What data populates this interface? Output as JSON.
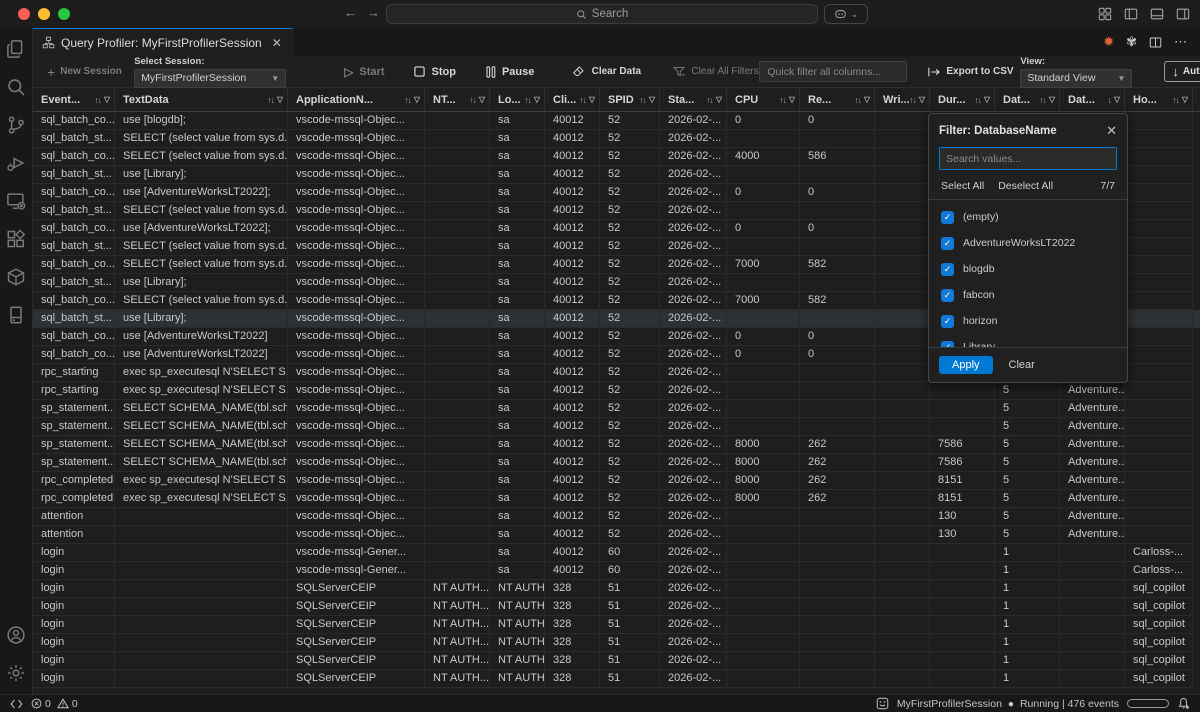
{
  "titlebar": {
    "search_placeholder": "Search"
  },
  "tabbar": {
    "tab_title": "Query Profiler: MyFirstProfilerSession"
  },
  "toolbar": {
    "new_session": "New Session",
    "select_session_label": "Select Session:",
    "session_value": "MyFirstProfilerSession",
    "start": "Start",
    "stop": "Stop",
    "pause": "Pause",
    "clear_data": "Clear Data",
    "clear_all_filters": "Clear All Filters",
    "quick_filter_placeholder": "Quick filter all columns...",
    "export_csv": "Export to CSV",
    "view_label": "View:",
    "view_value": "Standard View",
    "auto_scroll": "Auto-scroll"
  },
  "grid": {
    "columns": [
      {
        "label": "Event...",
        "sort": "both"
      },
      {
        "label": "TextData",
        "sort": "both"
      },
      {
        "label": "ApplicationN...",
        "sort": "both"
      },
      {
        "label": "NT...",
        "sort": "both"
      },
      {
        "label": "Lo...",
        "sort": "both"
      },
      {
        "label": "Cli...",
        "sort": "both"
      },
      {
        "label": "SPID",
        "sort": "both"
      },
      {
        "label": "Sta...",
        "sort": "both"
      },
      {
        "label": "CPU",
        "sort": "both"
      },
      {
        "label": "Re...",
        "sort": "both"
      },
      {
        "label": "Wri...",
        "sort": "both"
      },
      {
        "label": "Dur...",
        "sort": "both"
      },
      {
        "label": "Dat...",
        "sort": "both"
      },
      {
        "label": "Dat...",
        "sort": "desc"
      },
      {
        "label": "Ho...",
        "sort": "both"
      }
    ],
    "highlighted_row_index": 11,
    "rows": [
      [
        "sql_batch_co...",
        "use [blogdb];",
        "vscode-mssql-Objec...",
        "",
        "sa",
        "40012",
        "52",
        "2026-02-...",
        "0",
        "0",
        "",
        "",
        "",
        "",
        ""
      ],
      [
        "sql_batch_st...",
        "SELECT (select value from sys.d...",
        "vscode-mssql-Objec...",
        "",
        "sa",
        "40012",
        "52",
        "2026-02-...",
        "",
        "",
        "",
        "",
        "",
        "",
        ""
      ],
      [
        "sql_batch_co...",
        "SELECT (select value from sys.d...",
        "vscode-mssql-Objec...",
        "",
        "sa",
        "40012",
        "52",
        "2026-02-...",
        "4000",
        "586",
        "",
        "",
        "",
        "",
        ""
      ],
      [
        "sql_batch_st...",
        "use [Library];",
        "vscode-mssql-Objec...",
        "",
        "sa",
        "40012",
        "52",
        "2026-02-...",
        "",
        "",
        "",
        "",
        "",
        "",
        ""
      ],
      [
        "sql_batch_co...",
        "use [AdventureWorksLT2022];",
        "vscode-mssql-Objec...",
        "",
        "sa",
        "40012",
        "52",
        "2026-02-...",
        "0",
        "0",
        "",
        "",
        "",
        "",
        ""
      ],
      [
        "sql_batch_st...",
        "SELECT (select value from sys.d...",
        "vscode-mssql-Objec...",
        "",
        "sa",
        "40012",
        "52",
        "2026-02-...",
        "",
        "",
        "",
        "",
        "",
        "",
        ""
      ],
      [
        "sql_batch_co...",
        "use [AdventureWorksLT2022];",
        "vscode-mssql-Objec...",
        "",
        "sa",
        "40012",
        "52",
        "2026-02-...",
        "0",
        "0",
        "",
        "",
        "",
        "",
        ""
      ],
      [
        "sql_batch_st...",
        "SELECT (select value from sys.d...",
        "vscode-mssql-Objec...",
        "",
        "sa",
        "40012",
        "52",
        "2026-02-...",
        "",
        "",
        "",
        "",
        "",
        "",
        ""
      ],
      [
        "sql_batch_co...",
        "SELECT (select value from sys.d...",
        "vscode-mssql-Objec...",
        "",
        "sa",
        "40012",
        "52",
        "2026-02-...",
        "7000",
        "582",
        "",
        "",
        "",
        "",
        ""
      ],
      [
        "sql_batch_st...",
        "use [Library];",
        "vscode-mssql-Objec...",
        "",
        "sa",
        "40012",
        "52",
        "2026-02-...",
        "",
        "",
        "",
        "",
        "",
        "",
        ""
      ],
      [
        "sql_batch_co...",
        "SELECT (select value from sys.d...",
        "vscode-mssql-Objec...",
        "",
        "sa",
        "40012",
        "52",
        "2026-02-...",
        "7000",
        "582",
        "",
        "",
        "",
        "",
        ""
      ],
      [
        "sql_batch_st...",
        "use [Library];",
        "vscode-mssql-Objec...",
        "",
        "sa",
        "40012",
        "52",
        "2026-02-...",
        "",
        "",
        "",
        "",
        "",
        "",
        ""
      ],
      [
        "sql_batch_co...",
        "use [AdventureWorksLT2022]",
        "vscode-mssql-Objec...",
        "",
        "sa",
        "40012",
        "52",
        "2026-02-...",
        "0",
        "0",
        "",
        "",
        "",
        "",
        ""
      ],
      [
        "sql_batch_co...",
        "use [AdventureWorksLT2022]",
        "vscode-mssql-Objec...",
        "",
        "sa",
        "40012",
        "52",
        "2026-02-...",
        "0",
        "0",
        "",
        "",
        "",
        "",
        ""
      ],
      [
        "rpc_starting",
        "exec sp_executesql N'SELECT S...",
        "vscode-mssql-Objec...",
        "",
        "sa",
        "40012",
        "52",
        "2026-02-...",
        "",
        "",
        "",
        "",
        "",
        "",
        ""
      ],
      [
        "rpc_starting",
        "exec sp_executesql N'SELECT S...",
        "vscode-mssql-Objec...",
        "",
        "sa",
        "40012",
        "52",
        "2026-02-...",
        "",
        "",
        "",
        "",
        "5",
        "Adventure...",
        ""
      ],
      [
        "sp_statement...",
        "SELECT SCHEMA_NAME(tbl.sch...",
        "vscode-mssql-Objec...",
        "",
        "sa",
        "40012",
        "52",
        "2026-02-...",
        "",
        "",
        "",
        "",
        "5",
        "Adventure...",
        ""
      ],
      [
        "sp_statement...",
        "SELECT SCHEMA_NAME(tbl.sch...",
        "vscode-mssql-Objec...",
        "",
        "sa",
        "40012",
        "52",
        "2026-02-...",
        "",
        "",
        "",
        "",
        "5",
        "Adventure...",
        ""
      ],
      [
        "sp_statement...",
        "SELECT SCHEMA_NAME(tbl.sch...",
        "vscode-mssql-Objec...",
        "",
        "sa",
        "40012",
        "52",
        "2026-02-...",
        "8000",
        "262",
        "",
        "7586",
        "5",
        "Adventure...",
        ""
      ],
      [
        "sp_statement...",
        "SELECT SCHEMA_NAME(tbl.sch...",
        "vscode-mssql-Objec...",
        "",
        "sa",
        "40012",
        "52",
        "2026-02-...",
        "8000",
        "262",
        "",
        "7586",
        "5",
        "Adventure...",
        ""
      ],
      [
        "rpc_completed",
        "exec sp_executesql N'SELECT S...",
        "vscode-mssql-Objec...",
        "",
        "sa",
        "40012",
        "52",
        "2026-02-...",
        "8000",
        "262",
        "",
        "8151",
        "5",
        "Adventure...",
        ""
      ],
      [
        "rpc_completed",
        "exec sp_executesql N'SELECT S...",
        "vscode-mssql-Objec...",
        "",
        "sa",
        "40012",
        "52",
        "2026-02-...",
        "8000",
        "262",
        "",
        "8151",
        "5",
        "Adventure...",
        ""
      ],
      [
        "attention",
        "",
        "vscode-mssql-Objec...",
        "",
        "sa",
        "40012",
        "52",
        "2026-02-...",
        "",
        "",
        "",
        "130",
        "5",
        "Adventure...",
        ""
      ],
      [
        "attention",
        "",
        "vscode-mssql-Objec...",
        "",
        "sa",
        "40012",
        "52",
        "2026-02-...",
        "",
        "",
        "",
        "130",
        "5",
        "Adventure...",
        ""
      ],
      [
        "login",
        "",
        "vscode-mssql-Gener...",
        "",
        "sa",
        "40012",
        "60",
        "2026-02-...",
        "",
        "",
        "",
        "",
        "1",
        "",
        "Carloss-..."
      ],
      [
        "login",
        "",
        "vscode-mssql-Gener...",
        "",
        "sa",
        "40012",
        "60",
        "2026-02-...",
        "",
        "",
        "",
        "",
        "1",
        "",
        "Carloss-..."
      ],
      [
        "login",
        "",
        "SQLServerCEIP",
        "NT AUTH...",
        "NT AUTH...",
        "328",
        "51",
        "2026-02-...",
        "",
        "",
        "",
        "",
        "1",
        "",
        "sql_copilot"
      ],
      [
        "login",
        "",
        "SQLServerCEIP",
        "NT AUTH...",
        "NT AUTH...",
        "328",
        "51",
        "2026-02-...",
        "",
        "",
        "",
        "",
        "1",
        "",
        "sql_copilot"
      ],
      [
        "login",
        "",
        "SQLServerCEIP",
        "NT AUTH...",
        "NT AUTH...",
        "328",
        "51",
        "2026-02-...",
        "",
        "",
        "",
        "",
        "1",
        "",
        "sql_copilot"
      ],
      [
        "login",
        "",
        "SQLServerCEIP",
        "NT AUTH...",
        "NT AUTH...",
        "328",
        "51",
        "2026-02-...",
        "",
        "",
        "",
        "",
        "1",
        "",
        "sql_copilot"
      ],
      [
        "login",
        "",
        "SQLServerCEIP",
        "NT AUTH...",
        "NT AUTH...",
        "328",
        "51",
        "2026-02-...",
        "",
        "",
        "",
        "",
        "1",
        "",
        "sql_copilot"
      ],
      [
        "login",
        "",
        "SQLServerCEIP",
        "NT AUTH...",
        "NT AUTH...",
        "328",
        "51",
        "2026-02-...",
        "",
        "",
        "",
        "",
        "1",
        "",
        "sql_copilot"
      ]
    ]
  },
  "filter_popup": {
    "title": "Filter: DatabaseName",
    "search_placeholder": "Search values...",
    "select_all": "Select All",
    "deselect_all": "Deselect All",
    "count": "7/7",
    "options": [
      {
        "label": "(empty)",
        "checked": true
      },
      {
        "label": "AdventureWorksLT2022",
        "checked": true
      },
      {
        "label": "blogdb",
        "checked": true
      },
      {
        "label": "fabcon",
        "checked": true
      },
      {
        "label": "horizon",
        "checked": true
      },
      {
        "label": "Library",
        "checked": true
      }
    ],
    "apply": "Apply",
    "clear": "Clear"
  },
  "statusbar": {
    "errors": "0",
    "warnings": "0",
    "session": "MyFirstProfilerSession",
    "running_text": "Running | 476 events"
  },
  "colors": {
    "accent": "#0078d4",
    "traffic_red": "#ff5f57",
    "traffic_yellow": "#febc2e",
    "traffic_green": "#28c840"
  }
}
